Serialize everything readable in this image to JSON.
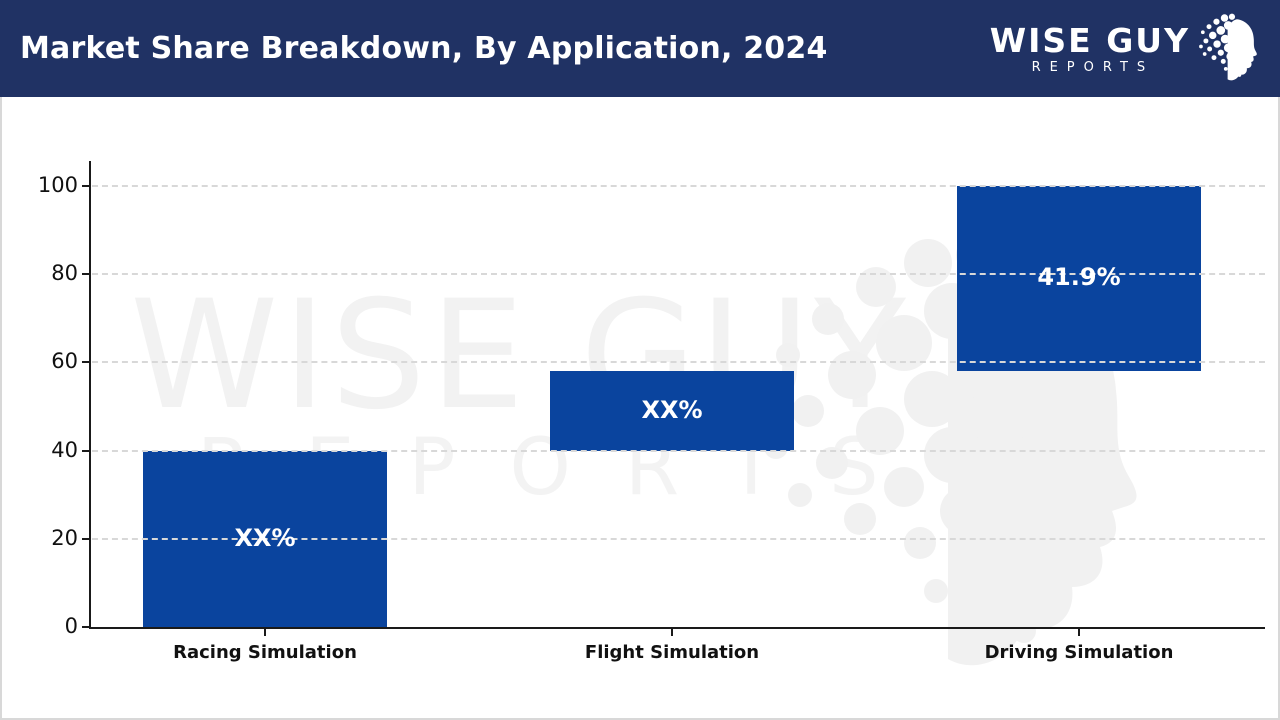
{
  "header": {
    "title": "Market Share Breakdown, By Application, 2024",
    "logo": {
      "line1": "WISE GUY",
      "line2": "REPORTS"
    }
  },
  "watermark": {
    "line1": "WISE GUY",
    "line2": "REPORTS"
  },
  "chart_data": {
    "type": "bar",
    "subtype": "floating-waterfall",
    "title": "Market Share Breakdown, By Application, 2024",
    "categories": [
      "Racing Simulation",
      "Flight Simulation",
      "Driving Simulation"
    ],
    "segments": [
      {
        "category": "Racing Simulation",
        "from": 0,
        "to": 40,
        "label": "XX%"
      },
      {
        "category": "Flight Simulation",
        "from": 40,
        "to": 58.1,
        "label": "XX%"
      },
      {
        "category": "Driving Simulation",
        "from": 58.1,
        "to": 100,
        "label": "41.9%"
      }
    ],
    "ylim": [
      0,
      100
    ],
    "yticks": [
      0,
      20,
      40,
      60,
      80,
      100
    ],
    "xlabel": "",
    "ylabel": "",
    "grid": {
      "axis": "y",
      "style": "dashed",
      "over_bars": true
    },
    "legend": "none"
  },
  "colors": {
    "header_bg": "#203264",
    "bar": "#0a449e",
    "bar_label": "#ffffff",
    "axis": "#1a1a1a",
    "grid": "#d8d8d8",
    "watermark": "#f2f2f2",
    "edge_border": "#d8d8d8"
  }
}
